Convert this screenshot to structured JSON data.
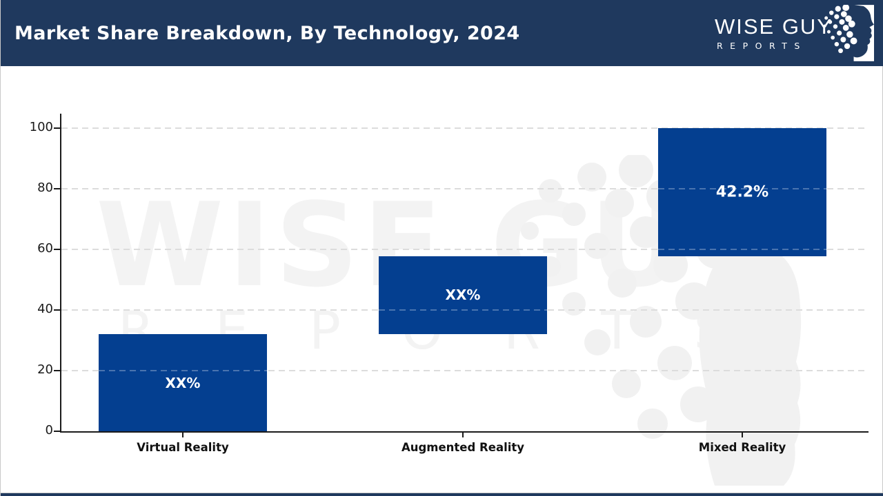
{
  "header": {
    "title": "Market Share Breakdown, By Technology, 2024",
    "logo": {
      "line1": "WISE GUY",
      "line2": "REPORTS"
    }
  },
  "watermark": {
    "line1": "WISE GUY",
    "line2": "REPORTS"
  },
  "chart_data": {
    "type": "bar",
    "subtype": "floating-waterfall",
    "title": "Market Share Breakdown, By Technology, 2024",
    "categories": [
      "Virtual Reality",
      "Augmented Reality",
      "Mixed Reality"
    ],
    "bars": [
      {
        "category": "Virtual Reality",
        "start": 0,
        "end": 32,
        "label": "XX%"
      },
      {
        "category": "Augmented Reality",
        "start": 32,
        "end": 57.8,
        "label": "XX%"
      },
      {
        "category": "Mixed Reality",
        "start": 57.8,
        "end": 100,
        "label": "42.2%"
      }
    ],
    "yticks": [
      0,
      20,
      40,
      60,
      80,
      100
    ],
    "ylim": [
      0,
      105
    ],
    "xlabel": "",
    "ylabel": "",
    "grid": "horizontal-dashed",
    "legend": "none",
    "bar_color": "#043F90",
    "bar_label_color": "#ffffff"
  },
  "colors": {
    "header_bg": "#1F395E",
    "axis": "#1a1a1a",
    "gridline": "#dcdcdc",
    "watermark": "#f3f3f3",
    "footer_bar": "#1F395E"
  }
}
